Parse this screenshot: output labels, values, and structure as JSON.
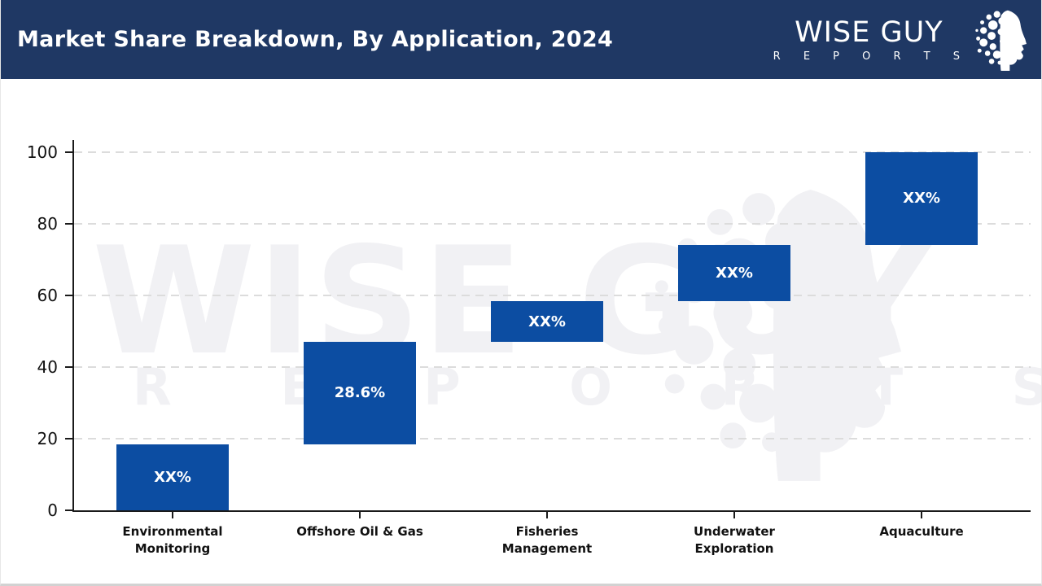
{
  "header": {
    "title": "Market Share Breakdown, By Application, 2024",
    "bg_color": "#1F3864",
    "logo": {
      "line1": "WISE GUY",
      "line2": "R E P O R T S"
    }
  },
  "watermark": {
    "line1": "WISE GUY",
    "line2": "R E P O R T S"
  },
  "chart_data": {
    "type": "bar",
    "subtype": "waterfall",
    "title": "Market Share Breakdown, By Application, 2024",
    "xlabel": "",
    "ylabel": "",
    "ylim": [
      0,
      100
    ],
    "y_ticks": [
      0,
      20,
      40,
      60,
      80,
      100
    ],
    "grid": "dashed-horizontal",
    "legend": "none",
    "bar_color": "#0C4DA2",
    "bar_label_color": "#ffffff",
    "categories": [
      "Environmental\nMonitoring",
      "Offshore Oil & Gas",
      "Fisheries\nManagement",
      "Underwater\nExploration",
      "Aquaculture"
    ],
    "segments": [
      {
        "category": "Environmental Monitoring",
        "label": "XX%",
        "start": 0,
        "end": 18.5
      },
      {
        "category": "Offshore Oil & Gas",
        "label": "28.6%",
        "start": 18.5,
        "end": 47.1
      },
      {
        "category": "Fisheries Management",
        "label": "XX%",
        "start": 47.1,
        "end": 58.3
      },
      {
        "category": "Underwater Exploration",
        "label": "XX%",
        "start": 58.3,
        "end": 74.1
      },
      {
        "category": "Aquaculture",
        "label": "XX%",
        "start": 74.1,
        "end": 100
      }
    ]
  }
}
